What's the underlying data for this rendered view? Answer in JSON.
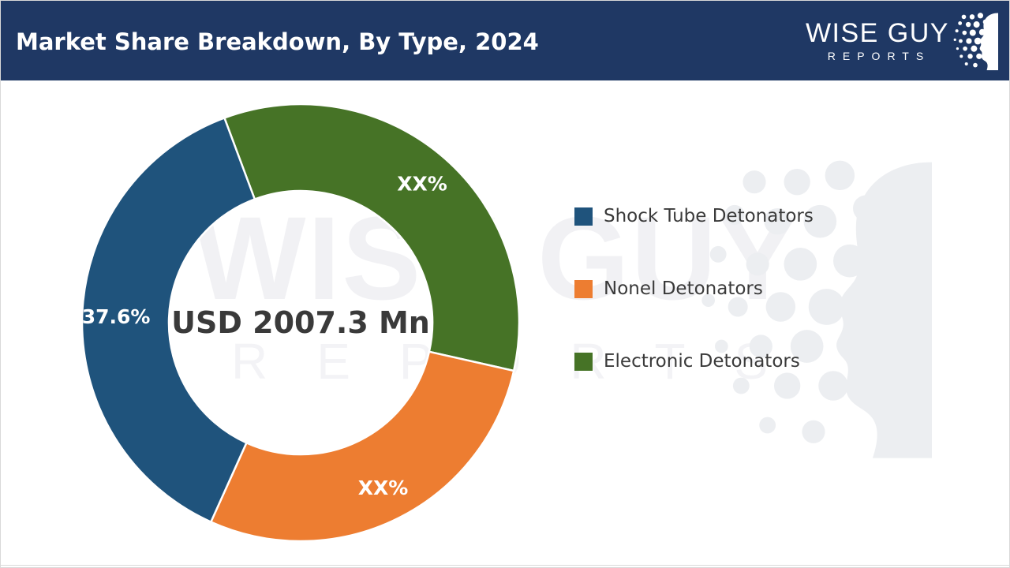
{
  "header": {
    "title": "Market Share Breakdown, By Type, 2024",
    "logo": {
      "name_line": "WISE GUY",
      "sub_line": "REPORTS"
    }
  },
  "chart_data": {
    "type": "pie",
    "subtype": "donut",
    "title": "Market Share Breakdown, By Type, 2024",
    "center_label": "USD 2007.3 Mn",
    "start_angle_deg": 339.6,
    "legend_position": "right",
    "segments": [
      {
        "name": "Electronic Detonators",
        "display_label": "XX%",
        "percent": 34.2,
        "color": "#467326"
      },
      {
        "name": "Nonel Detonators",
        "display_label": "XX%",
        "percent": 28.2,
        "color": "#ED7D31"
      },
      {
        "name": "Shock Tube Detonators",
        "display_label": "37.6%",
        "percent": 37.6,
        "color": "#1F537C"
      }
    ],
    "legend": [
      {
        "label": "Shock Tube Detonators",
        "color": "#1F537C"
      },
      {
        "label": "Nonel Detonators",
        "color": "#ED7D31"
      },
      {
        "label": "Electronic Detonators",
        "color": "#467326"
      }
    ]
  },
  "watermark": {
    "name_line": "WISE GUY",
    "sub_line": "REPORTS"
  },
  "colors": {
    "header_bg": "#1F3864",
    "slice_label": "#FFFFFF",
    "text_dark": "#3A3A3A",
    "page_border": "#D9D9D9"
  }
}
